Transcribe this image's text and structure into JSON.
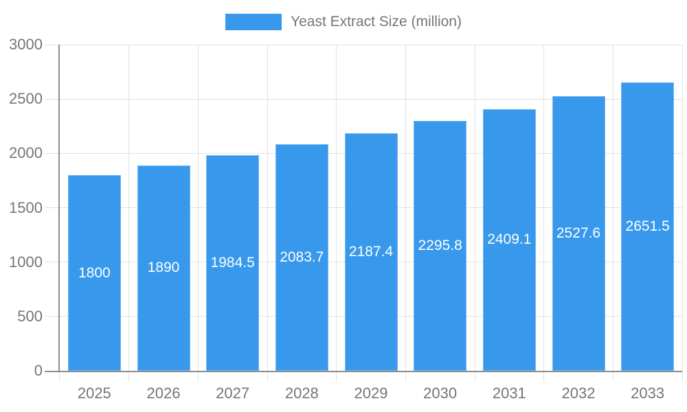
{
  "chart_data": {
    "type": "bar",
    "series_name": "Yeast Extract Size (million)",
    "title": "",
    "xlabel": "",
    "ylabel": "",
    "categories": [
      "2025",
      "2026",
      "2027",
      "2028",
      "2029",
      "2030",
      "2031",
      "2032",
      "2033"
    ],
    "values": [
      1800,
      1890,
      1984.5,
      2083.7,
      2187.4,
      2295.8,
      2409.1,
      2527.6,
      2651.5
    ],
    "bar_labels": [
      "1800",
      "1890",
      "1984.5",
      "2083.7",
      "2187.4",
      "2295.8",
      "2409.1",
      "2527.6",
      "2651.5"
    ],
    "ylim": [
      0,
      3000
    ],
    "yticks": [
      0,
      500,
      1000,
      1500,
      2000,
      2500,
      3000
    ],
    "ytick_labels": [
      "0",
      "500",
      "1000",
      "1500",
      "2000",
      "2500",
      "3000"
    ],
    "grid": true,
    "legend_position": "top",
    "colors": {
      "bar": "#3899EC",
      "grid": "#E1E1E1",
      "axis": "#8C8C8C",
      "tick_text": "#757575",
      "bar_label_text": "#FFFFFF",
      "background": "#FFFFFF"
    }
  }
}
